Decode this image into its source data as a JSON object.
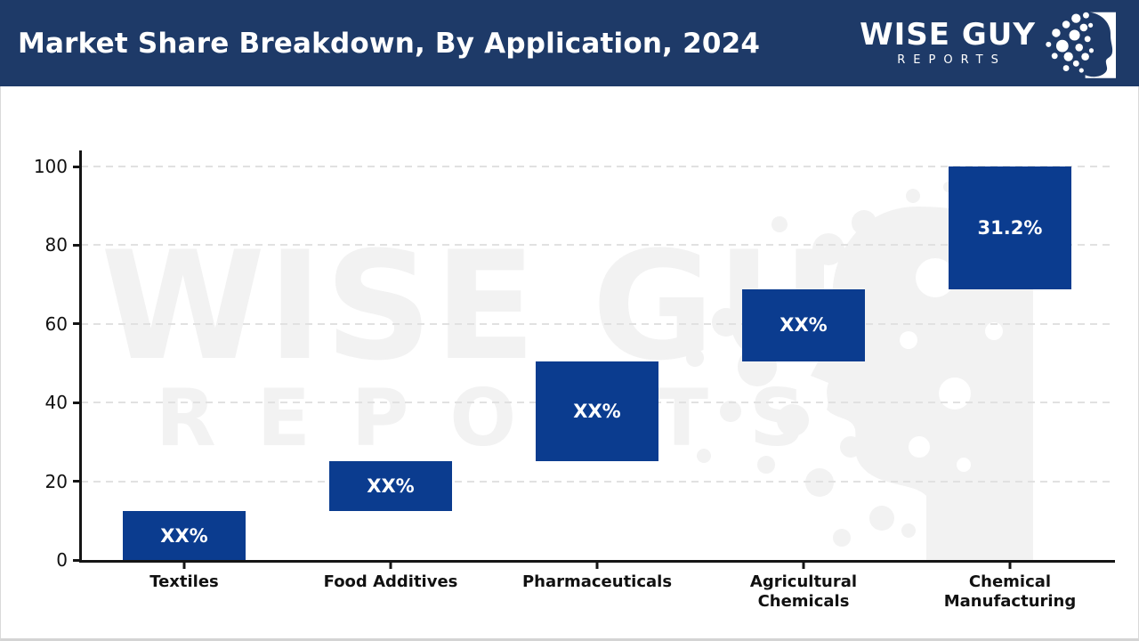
{
  "header": {
    "title": "Market Share Breakdown, By Application, 2024",
    "brand": {
      "line1": "WISE GUY",
      "line2": "REPORTS"
    }
  },
  "watermark": {
    "line1": "WISE GUY",
    "line2": "REPORTS"
  },
  "icons": {
    "brand_face": "dotted-head-profile",
    "watermark_face": "dotted-head-profile"
  },
  "colors": {
    "header_bg": "#1e3a68",
    "bar": "#0b3c8f",
    "bar_label": "#ffffff",
    "watermark": "#f2f2f2",
    "gridline": "#e1e1e1",
    "axis": "#151515"
  },
  "chart_data": {
    "type": "bar",
    "variant": "floating-waterfall",
    "title": "Market Share Breakdown, By Application, 2024",
    "categories": [
      "Textiles",
      "Food Additives",
      "Pharmaceuticals",
      "Agricultural Chemicals",
      "Chemical Manufacturing"
    ],
    "segments": [
      {
        "category": "Textiles",
        "start": 0,
        "end": 12.4,
        "label": "XX%"
      },
      {
        "category": "Food Additives",
        "start": 12.4,
        "end": 25.2,
        "label": "XX%"
      },
      {
        "category": "Pharmaceuticals",
        "start": 25.2,
        "end": 50.5,
        "label": "XX%"
      },
      {
        "category": "Agricultural Chemicals",
        "start": 50.5,
        "end": 68.8,
        "label": "XX%"
      },
      {
        "category": "Chemical Manufacturing",
        "start": 68.8,
        "end": 100,
        "label": "31.2%"
      }
    ],
    "values_pct": [
      12.4,
      12.8,
      25.3,
      18.3,
      31.2
    ],
    "ylim": [
      0,
      100
    ],
    "yticks": [
      0,
      20,
      40,
      60,
      80,
      100
    ],
    "xlabel": "",
    "ylabel": "",
    "grid": "horizontal-dashed",
    "legend": false,
    "bar_color": "#0b3c8f",
    "bar_label_color": "#ffffff"
  }
}
